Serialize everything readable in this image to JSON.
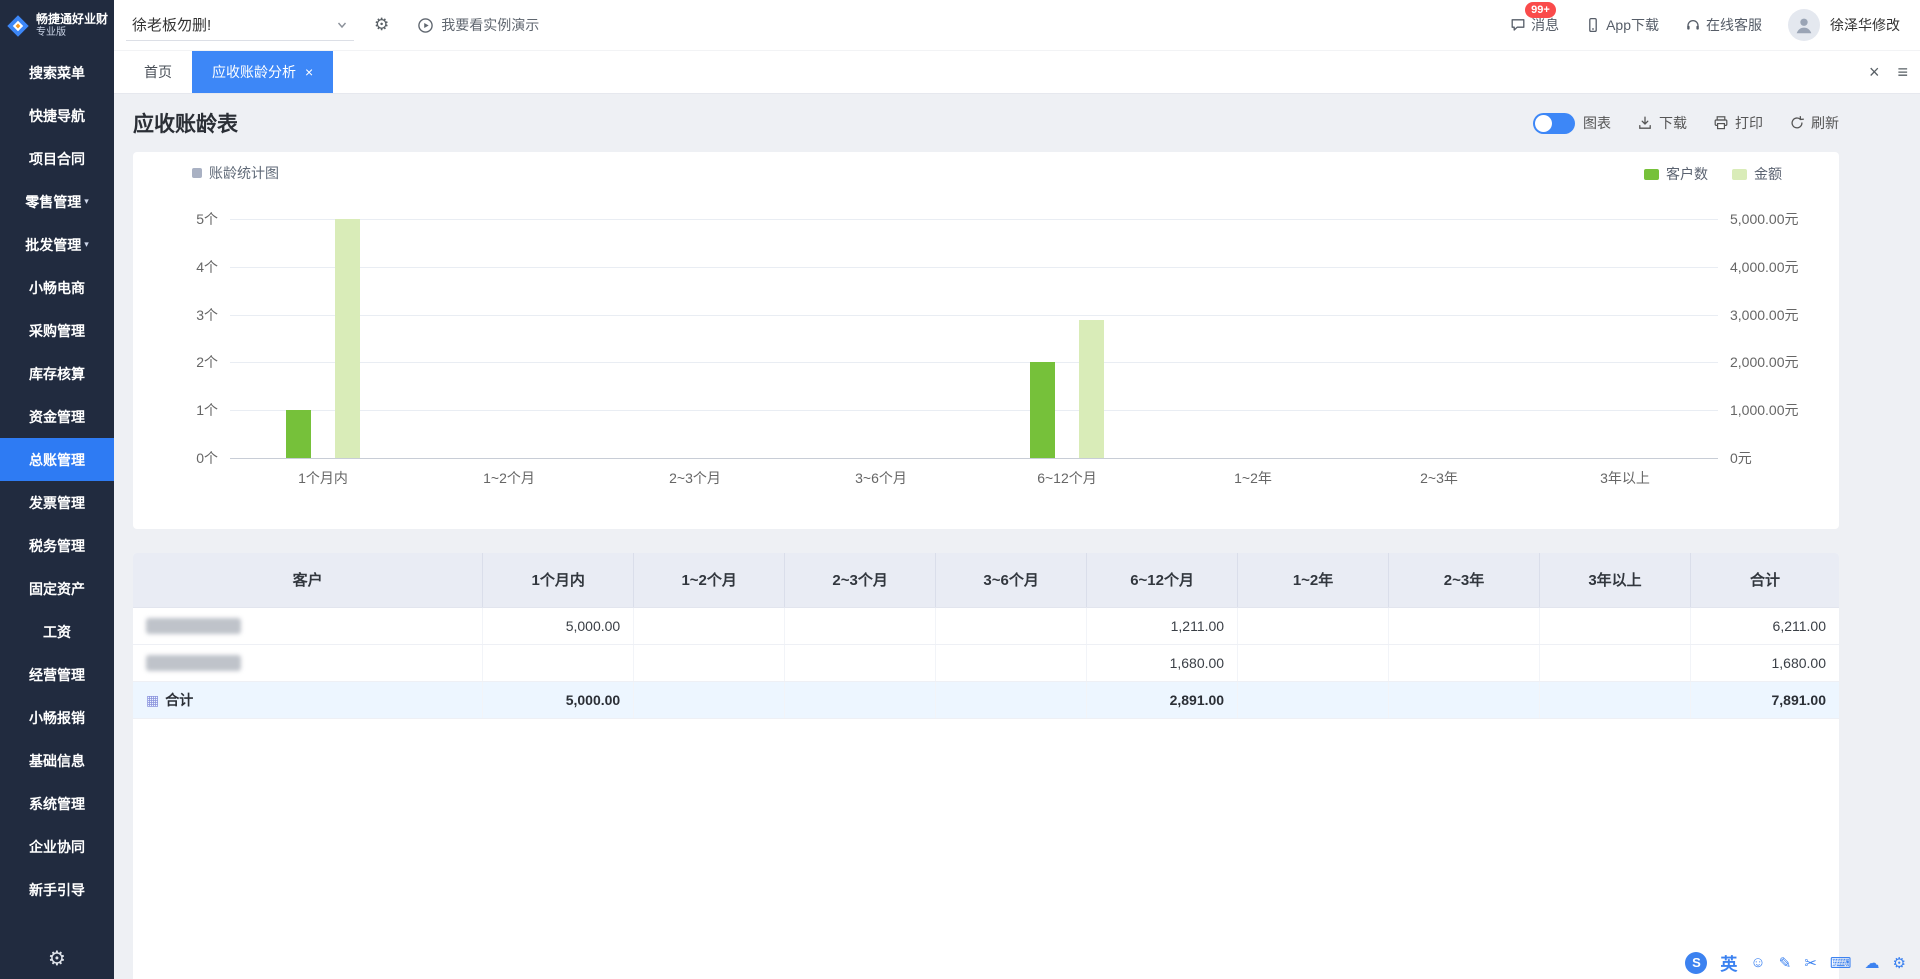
{
  "colors": {
    "accent_blue": "#3d87f7",
    "sidebar_bg": "#212b3f",
    "sidebar_active": "#2e7bf3",
    "customer_bar_green": "#76c13a",
    "amount_bar_light_green": "#d9ecb8",
    "table_header_bg": "#e9ecf4",
    "total_row_bg": "#edf6ff",
    "badge_red": "#fa4b4b",
    "ime_blue": "#3c82f0"
  },
  "icons": {
    "chevron_down": "▾",
    "close": "×",
    "tab_list": "≡",
    "gear": "⚙",
    "sum_grid": "▦"
  },
  "sidebar": {
    "brand_line1": "畅捷通好业财",
    "brand_line2": "专业版",
    "items": [
      {
        "label": "搜索菜单",
        "active": false,
        "caret": false
      },
      {
        "label": "快捷导航",
        "active": false,
        "caret": false
      },
      {
        "label": "项目合同",
        "active": false,
        "caret": false
      },
      {
        "label": "零售管理",
        "active": false,
        "caret": true
      },
      {
        "label": "批发管理",
        "active": false,
        "caret": true
      },
      {
        "label": "小畅电商",
        "active": false,
        "caret": false
      },
      {
        "label": "采购管理",
        "active": false,
        "caret": false
      },
      {
        "label": "库存核算",
        "active": false,
        "caret": false
      },
      {
        "label": "资金管理",
        "active": false,
        "caret": false
      },
      {
        "label": "总账管理",
        "active": true,
        "caret": false
      },
      {
        "label": "发票管理",
        "active": false,
        "caret": false
      },
      {
        "label": "税务管理",
        "active": false,
        "caret": false
      },
      {
        "label": "固定资产",
        "active": false,
        "caret": false
      },
      {
        "label": "工资",
        "active": false,
        "caret": false
      },
      {
        "label": "经营管理",
        "active": false,
        "caret": false
      },
      {
        "label": "小畅报销",
        "active": false,
        "caret": false
      },
      {
        "label": "基础信息",
        "active": false,
        "caret": false
      },
      {
        "label": "系统管理",
        "active": false,
        "caret": false
      },
      {
        "label": "企业协同",
        "active": false,
        "caret": false
      },
      {
        "label": "新手引导",
        "active": false,
        "caret": false
      }
    ]
  },
  "topbar": {
    "company_selector": "徐老板勿删!",
    "demo_link": "我要看实例演示",
    "messages_label": "消息",
    "messages_badge": "99+",
    "app_download_label": "App下载",
    "support_label": "在线客服",
    "username": "徐泽华修改"
  },
  "tabs": {
    "items": [
      {
        "label": "首页",
        "active": false,
        "closable": false
      },
      {
        "label": "应收账龄分析",
        "active": true,
        "closable": true
      }
    ]
  },
  "page": {
    "title": "应收账龄表",
    "toggle_label": "图表",
    "toggle_on": true,
    "download_label": "下载",
    "print_label": "打印",
    "refresh_label": "刷新"
  },
  "chart_data": {
    "type": "bar",
    "title": "账龄统计图",
    "categories": [
      "1个月内",
      "1~2个月",
      "2~3个月",
      "3~6个月",
      "6~12个月",
      "1~2年",
      "2~3年",
      "3年以上"
    ],
    "series": [
      {
        "name": "客户数",
        "axis": "left",
        "color": "#76c13a",
        "values": [
          1,
          0,
          0,
          0,
          2,
          0,
          0,
          0
        ]
      },
      {
        "name": "金额",
        "axis": "right",
        "color": "#d9ecb8",
        "values": [
          5000,
          0,
          0,
          0,
          2891,
          0,
          0,
          0
        ]
      }
    ],
    "left_axis": {
      "ticks": [
        "5个",
        "4个",
        "3个",
        "2个",
        "1个",
        "0个"
      ],
      "max": 5,
      "min": 0
    },
    "right_axis": {
      "ticks": [
        "5,000.00元",
        "4,000.00元",
        "3,000.00元",
        "2,000.00元",
        "1,000.00元",
        "0元"
      ],
      "max": 5000,
      "min": 0
    },
    "legend_position": "top-right",
    "grid": true,
    "xlabel": "",
    "ylabel": ""
  },
  "table": {
    "headers": [
      "客户",
      "1个月内",
      "1~2个月",
      "2~3个月",
      "3~6个月",
      "6~12个月",
      "1~2年",
      "2~3年",
      "3年以上",
      "合计"
    ],
    "rows": [
      {
        "customer_redacted": true,
        "values": [
          "5,000.00",
          "",
          "",
          "",
          "1,211.00",
          "",
          "",
          "",
          "6,211.00"
        ]
      },
      {
        "customer_redacted": true,
        "values": [
          "",
          "",
          "",
          "",
          "1,680.00",
          "",
          "",
          "",
          "1,680.00"
        ]
      }
    ],
    "total_row": {
      "label": "合计",
      "values": [
        "5,000.00",
        "",
        "",
        "",
        "2,891.00",
        "",
        "",
        "",
        "7,891.00"
      ]
    }
  },
  "ime_bar": {
    "logo_text": "S",
    "mode": "英",
    "icons": [
      {
        "name": "emoji-icon",
        "glyph": "☺"
      },
      {
        "name": "pen-icon",
        "glyph": "✎"
      },
      {
        "name": "scissors-icon",
        "glyph": "✂"
      },
      {
        "name": "keyboard-icon",
        "glyph": "⌨"
      },
      {
        "name": "cloud-icon",
        "glyph": "☁"
      },
      {
        "name": "toolbox-icon",
        "glyph": "⚙"
      }
    ]
  }
}
